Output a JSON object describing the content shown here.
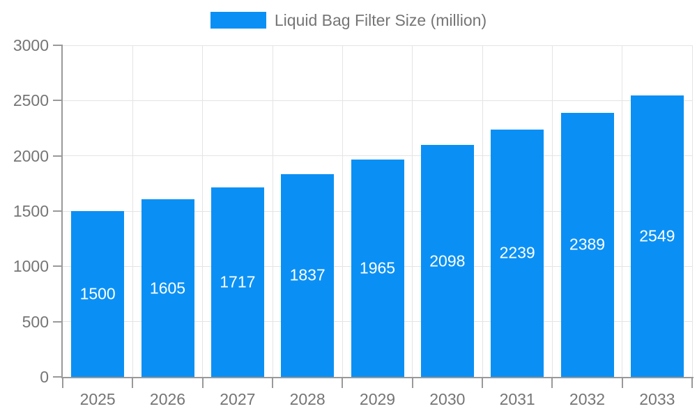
{
  "chart_data": {
    "type": "bar",
    "title": "Liquid Bag Filter Size (million)",
    "legend": {
      "label": "Liquid Bag Filter Size (million)",
      "position": "top-center"
    },
    "categories": [
      "2025",
      "2026",
      "2027",
      "2028",
      "2029",
      "2030",
      "2031",
      "2032",
      "2033"
    ],
    "series": [
      {
        "name": "Liquid Bag Filter Size (million)",
        "values": [
          1500,
          1605,
          1717,
          1837,
          1965,
          2098,
          2239,
          2389,
          2549
        ]
      }
    ],
    "bar_value_labels": [
      "1500",
      "1605",
      "1717",
      "1837",
      "1965",
      "2098",
      "2239",
      "2389",
      "2549"
    ],
    "xlabel": "",
    "ylabel": "",
    "ylim": [
      0,
      3000
    ],
    "yticks": [
      0,
      500,
      1000,
      1500,
      2000,
      2500,
      3000
    ],
    "grid": true,
    "colors": {
      "bar": "#0a90f5",
      "bar_label_text": "#ffffff",
      "axis_line": "#999999",
      "gridline": "#e4e4e4",
      "tick_text": "#757575",
      "legend_text": "#757575",
      "background": "#ffffff"
    }
  }
}
